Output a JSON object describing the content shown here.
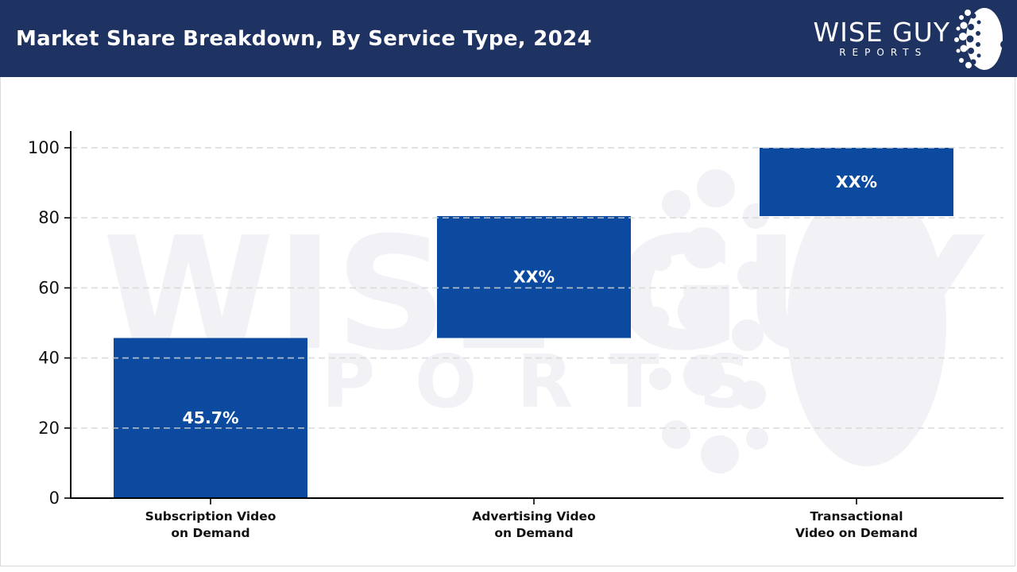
{
  "header": {
    "title": "Market Share Breakdown, By Service Type, 2024",
    "logo": {
      "brand": "WISE GUY",
      "sub": "REPORTS"
    }
  },
  "watermark": {
    "brand": "WISE GUY",
    "sub": "REPORTS"
  },
  "chart_data": {
    "type": "bar",
    "subtype": "stacked-waterfall",
    "title": "Market Share Breakdown, By Service Type, 2024",
    "categories": [
      [
        "Subscription Video",
        "on Demand"
      ],
      [
        "Advertising Video",
        "on Demand"
      ],
      [
        "Transactional",
        "Video on Demand"
      ]
    ],
    "segments": [
      {
        "category": "Subscription Video on Demand",
        "start": 0,
        "end": 45.7,
        "label": "45.7%"
      },
      {
        "category": "Advertising Video on Demand",
        "start": 45.7,
        "end": 80.5,
        "label": "XX%"
      },
      {
        "category": "Transactional Video on Demand",
        "start": 80.5,
        "end": 100,
        "label": "XX%"
      }
    ],
    "yticks": [
      0,
      20,
      40,
      60,
      80,
      100
    ],
    "ylim": [
      0,
      105
    ],
    "xlabel": "",
    "ylabel": "",
    "grid": "horizontal-dashed",
    "legend": "none"
  },
  "colors": {
    "header_bg": "#1E3362",
    "bar": "#0B4A9E",
    "value_label": "#FFFFFF",
    "grid": "#D9D9D9",
    "axis": "#000000",
    "tick_label": "#111111",
    "watermark": "#F2F2F6",
    "page_bg": "#FFFFFF",
    "border": "#D8D8D8"
  }
}
